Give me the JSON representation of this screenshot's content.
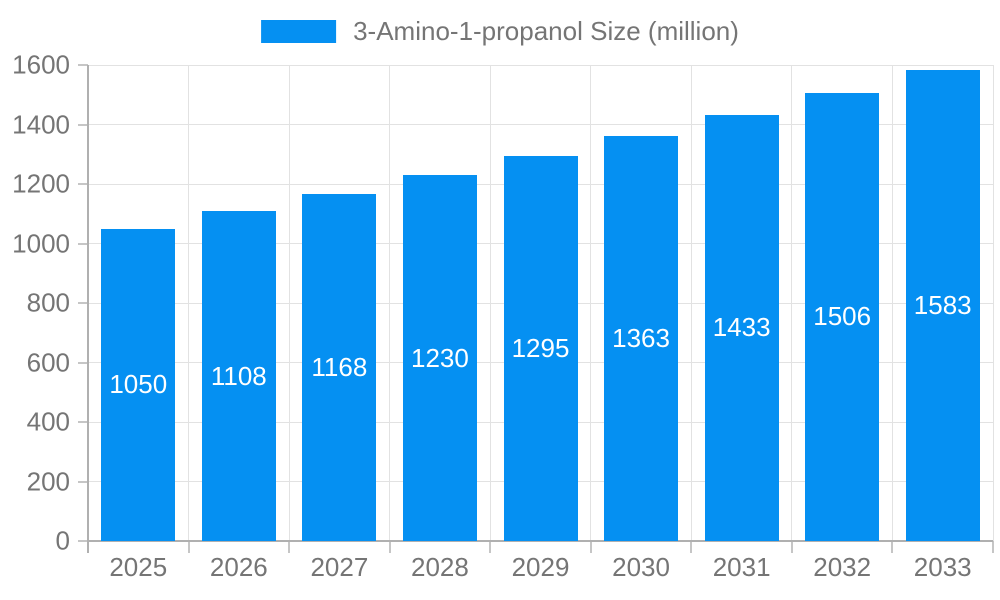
{
  "chart_data": {
    "type": "bar",
    "legend": "3-Amino-1-propanol Size (million)",
    "legend_position": "top",
    "categories": [
      "2025",
      "2026",
      "2027",
      "2028",
      "2029",
      "2030",
      "2031",
      "2032",
      "2033"
    ],
    "values": [
      1050,
      1108,
      1168,
      1230,
      1295,
      1363,
      1433,
      1506,
      1583
    ],
    "xlabel": "",
    "ylabel": "",
    "ylim": [
      0,
      1600
    ],
    "yticks": [
      0,
      200,
      400,
      600,
      800,
      1000,
      1200,
      1400,
      1600
    ],
    "grid": true,
    "bar_value_labels_inside": true
  },
  "colors": {
    "bar": "#0590F2",
    "bar_label": "#FFFFFF",
    "axis_text": "#757575",
    "gridline": "#E2E2E2",
    "axis_line": "#B0B0B0",
    "tick": "#C6C6C6",
    "background": "#FFFFFF"
  }
}
